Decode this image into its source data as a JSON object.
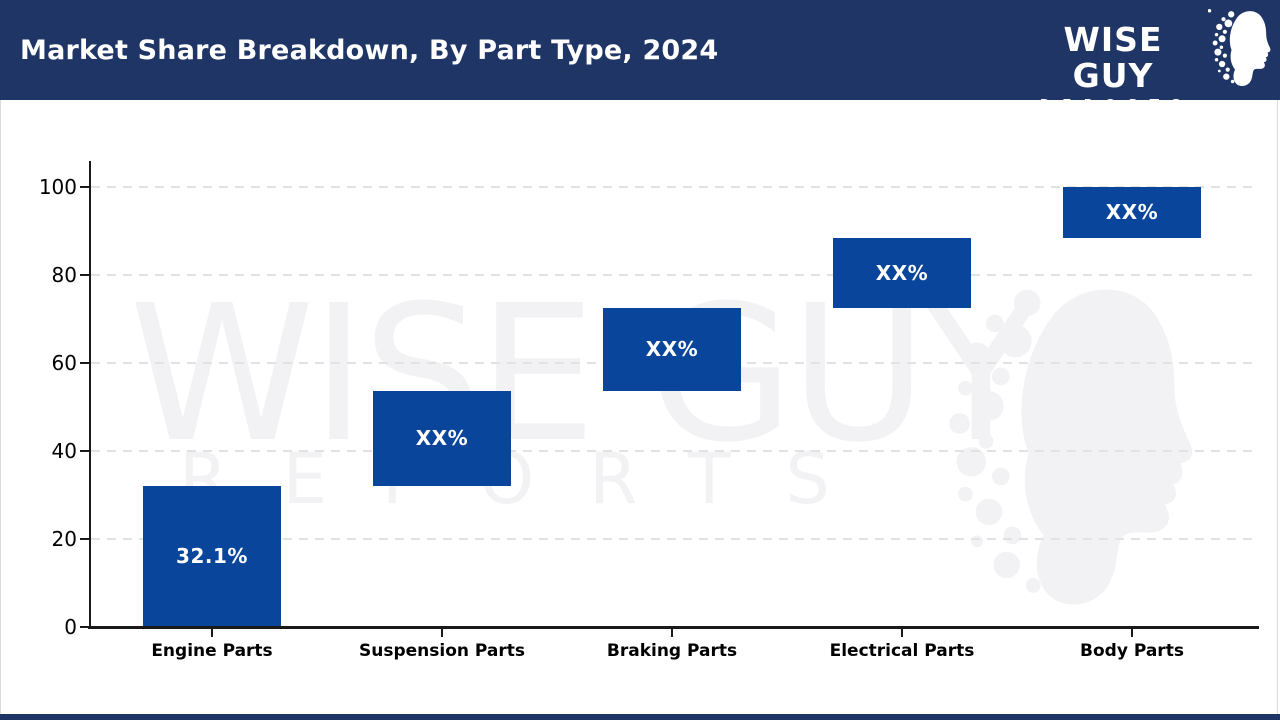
{
  "header": {
    "title": "Market Share Breakdown, By Part Type, 2024",
    "logo": {
      "wordmark": "WISE GUY",
      "subtext": "REPORTS"
    }
  },
  "watermark": {
    "wordmark": "WISE GUY",
    "subtext": "REPORTS"
  },
  "chart_data": {
    "type": "bar",
    "subtype": "waterfall",
    "title": "Market Share Breakdown, By Part Type, 2024",
    "categories": [
      "Engine Parts",
      "Suspension Parts",
      "Braking Parts",
      "Electrical Parts",
      "Body Parts"
    ],
    "segments": [
      {
        "category": "Engine Parts",
        "start": 0,
        "end": 32.1,
        "label": "32.1%"
      },
      {
        "category": "Suspension Parts",
        "start": 32.1,
        "end": 53.7,
        "label": "XX%"
      },
      {
        "category": "Braking Parts",
        "start": 53.7,
        "end": 72.6,
        "label": "XX%"
      },
      {
        "category": "Electrical Parts",
        "start": 72.6,
        "end": 88.5,
        "label": "XX%"
      },
      {
        "category": "Body Parts",
        "start": 88.5,
        "end": 100,
        "label": "XX%"
      }
    ],
    "y_ticks": [
      0,
      20,
      40,
      60,
      80,
      100
    ],
    "ylim": [
      0,
      105
    ],
    "xlabel": "",
    "ylabel": "",
    "legend": "none",
    "grid": "horizontal-dashed",
    "bar_color": "#0a459c",
    "bar_label_color": "#ffffff"
  },
  "colors": {
    "header_bg": "#1f3565",
    "footer_bg": "#1f3565",
    "bar": "#0a459c",
    "gridline": "#e2e2e2",
    "axis": "#1a1a1a",
    "watermark": "#f2f2f5",
    "background": "#ffffff"
  }
}
